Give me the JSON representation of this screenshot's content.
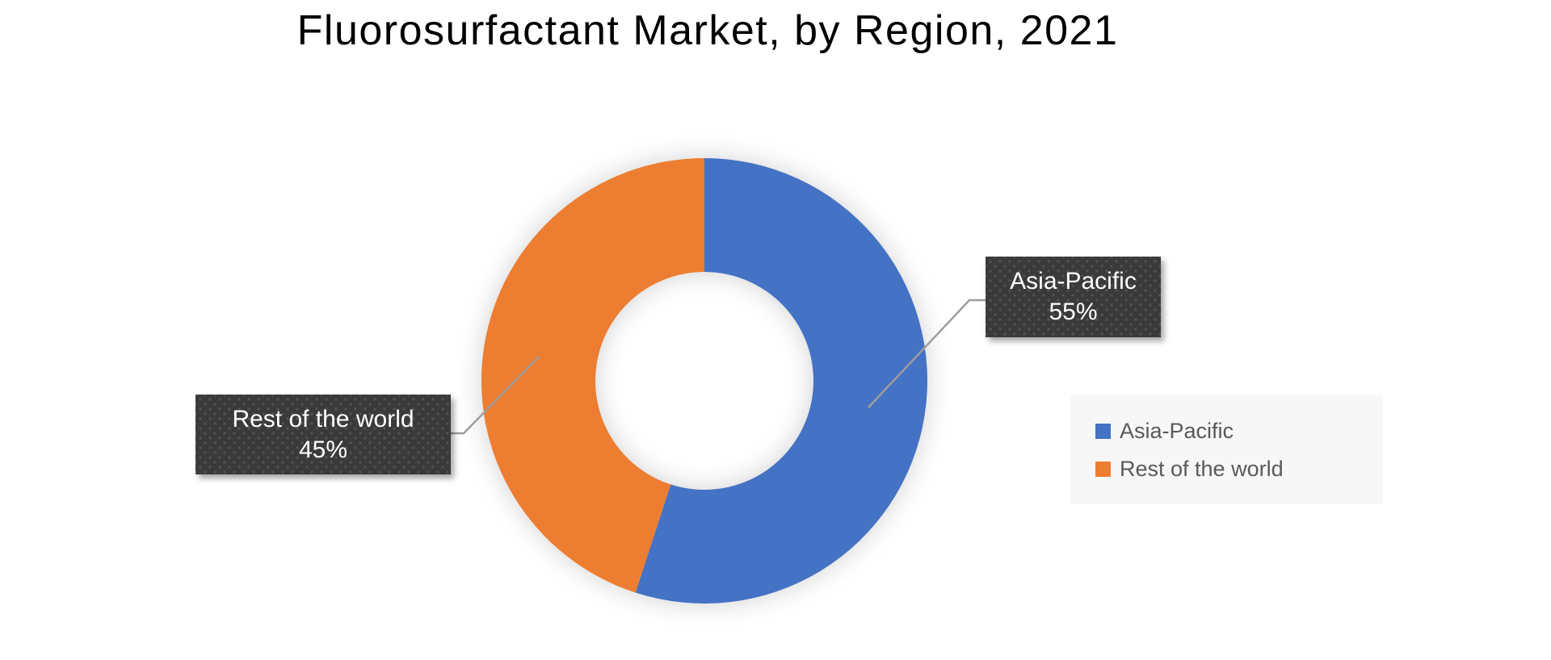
{
  "title": "Fluorosurfactant Market, by Region, 2021",
  "chart_data": {
    "type": "pie",
    "subtype": "donut",
    "title": "Fluorosurfactant Market, by Region, 2021",
    "categories": [
      "Asia-Pacific",
      "Rest of the world"
    ],
    "values": [
      55,
      45
    ],
    "unit": "%",
    "colors": [
      "#4472c4",
      "#ed7d31"
    ],
    "start_angle_deg": 0,
    "direction": "clockwise",
    "donut_hole_ratio": 0.49,
    "legend_position": "right",
    "data_labels": [
      "Asia-Pacific 55%",
      "Rest of the world 45%"
    ]
  },
  "callouts": {
    "asia_pacific": {
      "label": "Asia-Pacific",
      "value": "55%"
    },
    "rest_of_world": {
      "label": "Rest of the world",
      "value": "45%"
    }
  },
  "legend": {
    "items": [
      {
        "label": "Asia-Pacific",
        "color": "#4472c4"
      },
      {
        "label": "Rest of the world",
        "color": "#ed7d31"
      }
    ]
  },
  "style": {
    "title_color": "#000000",
    "label_box_bg": "#3a3a3a",
    "label_text_color": "#ffffff",
    "leader_line_color": "#9e9e9e",
    "legend_bg": "#f7f7f7",
    "legend_text_color": "#595959"
  }
}
